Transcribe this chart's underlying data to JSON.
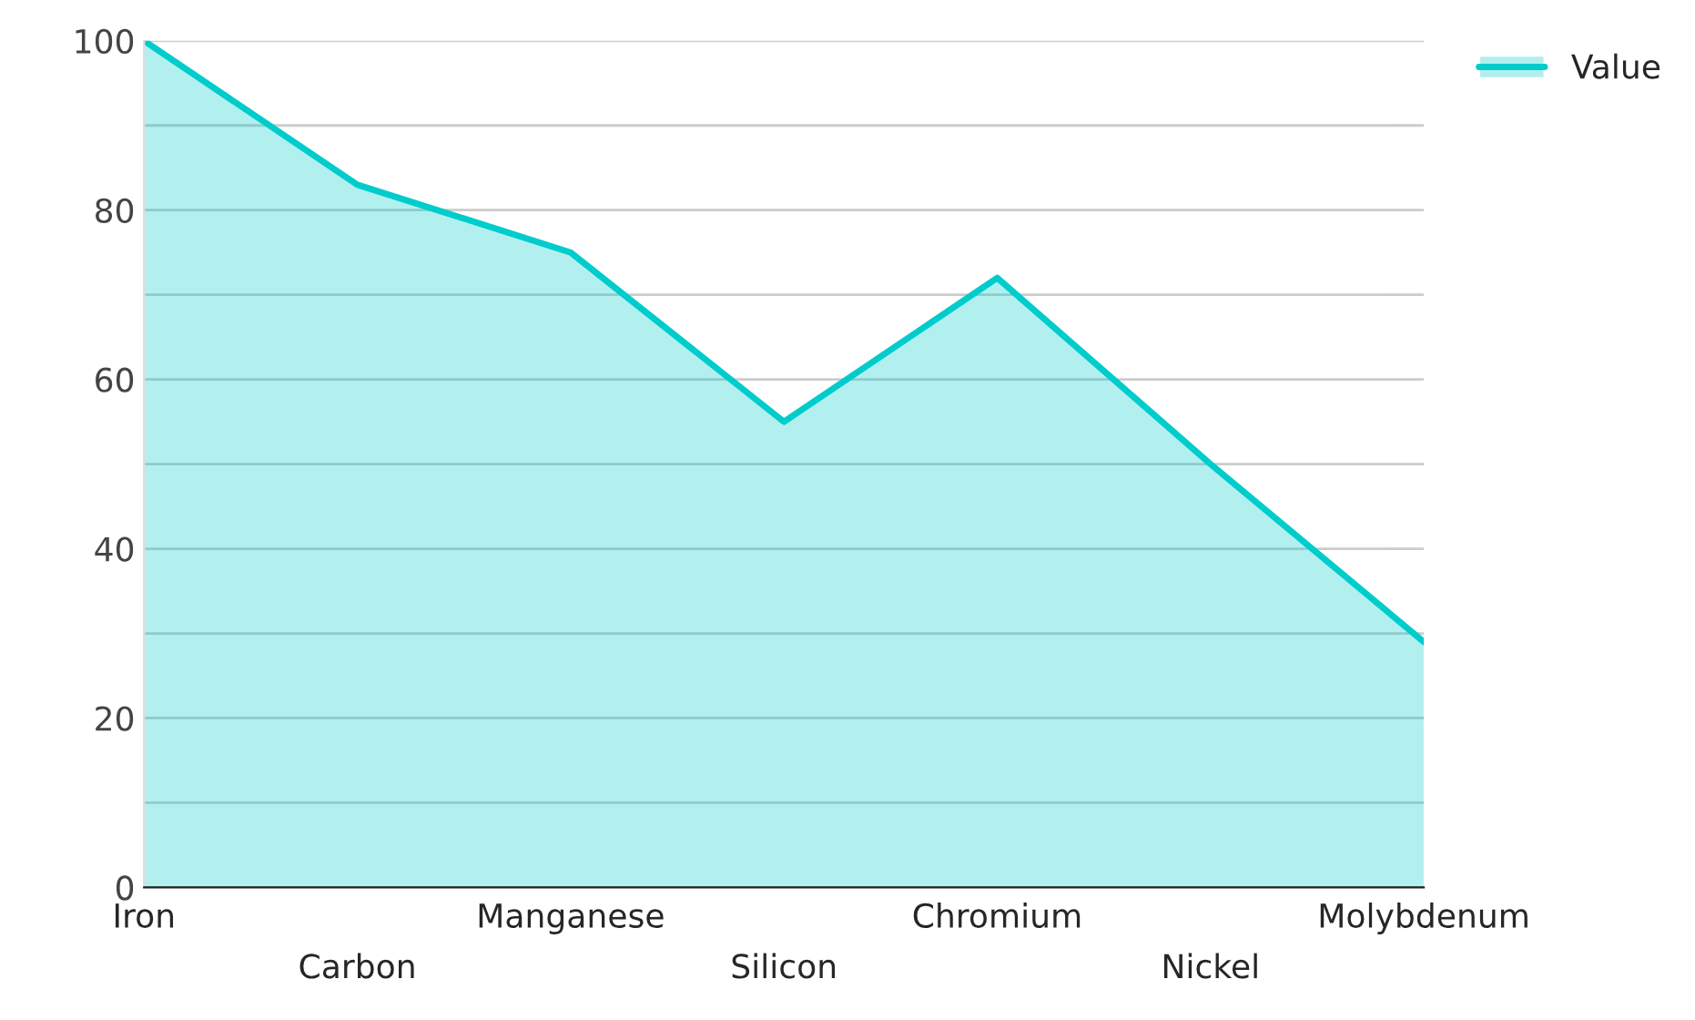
{
  "chart_data": {
    "type": "area",
    "categories": [
      "Iron",
      "Carbon",
      "Manganese",
      "Silicon",
      "Chromium",
      "Nickel",
      "Molybdenum"
    ],
    "series": [
      {
        "name": "Value",
        "color": "#00cccc",
        "values": [
          100,
          83,
          75,
          55,
          72,
          50,
          29
        ]
      }
    ],
    "ylim": [
      0,
      100
    ],
    "yticks": [
      0,
      {
        "value": 10,
        "label": null
      },
      20,
      {
        "value": 30,
        "label": null
      },
      40,
      {
        "value": 50,
        "label": null
      },
      60,
      {
        "value": 70,
        "label": null
      },
      80,
      {
        "value": 90,
        "label": null
      },
      100
    ],
    "grid": "y",
    "legend": "top right"
  }
}
